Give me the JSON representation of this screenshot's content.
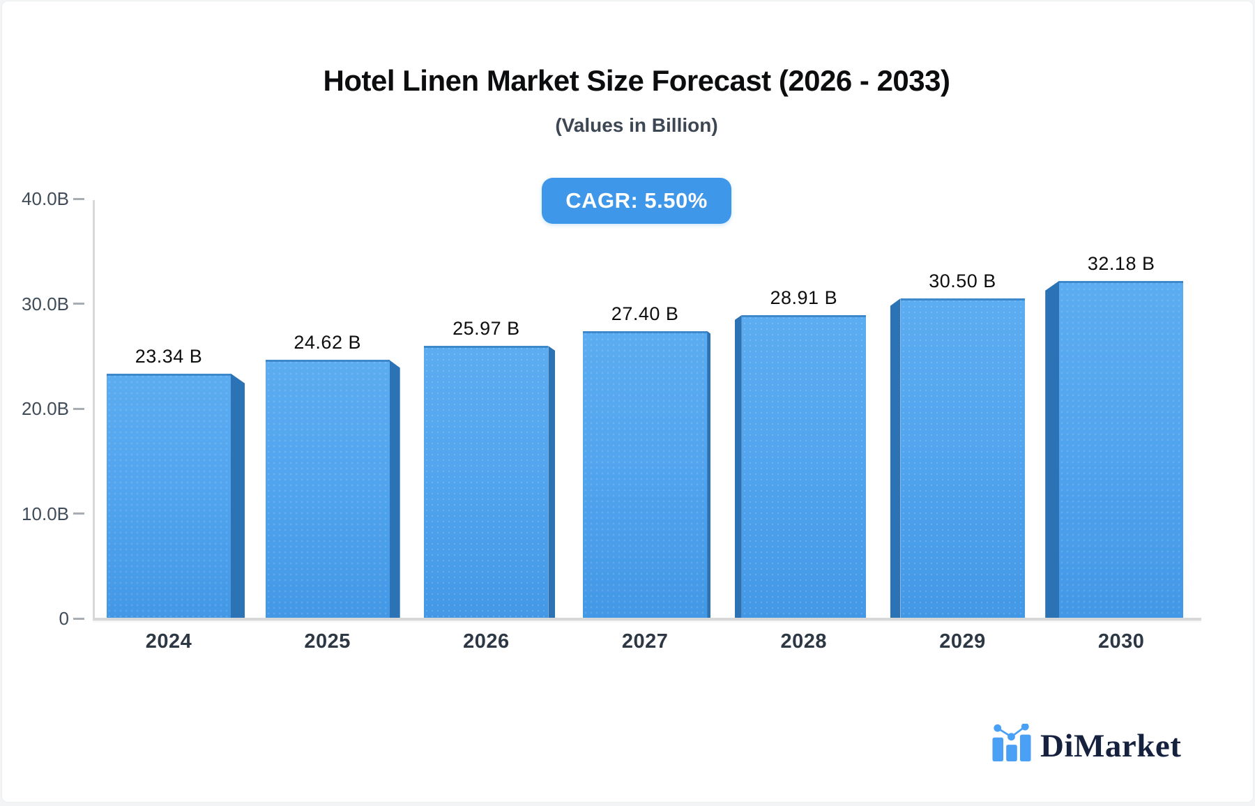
{
  "chart_data": {
    "type": "bar",
    "title": "Hotel Linen Market Size Forecast (2026 - 2033)",
    "subtitle": "(Values in Billion)",
    "cagr_label": "CAGR: 5.50%",
    "categories": [
      "2024",
      "2025",
      "2026",
      "2027",
      "2028",
      "2029",
      "2030"
    ],
    "values": [
      23.34,
      24.62,
      25.97,
      27.4,
      28.91,
      30.5,
      32.18
    ],
    "value_labels": [
      "23.34 B",
      "24.62 B",
      "25.97 B",
      "27.40 B",
      "28.91 B",
      "30.50 B",
      "32.18 B"
    ],
    "xlabel": "",
    "ylabel": "",
    "ylim": [
      0,
      40
    ],
    "yticks": [
      {
        "value": 0,
        "label": "0"
      },
      {
        "value": 10,
        "label": "10.0B"
      },
      {
        "value": 20,
        "label": "20.0B"
      },
      {
        "value": 30,
        "label": "30.0B"
      },
      {
        "value": 40,
        "label": "40.0B"
      }
    ],
    "grid": false,
    "legend": false,
    "bar_style": "3d-perspective"
  },
  "style": {
    "bar_face": "#52a5ee",
    "bar_side": "#2c73b5",
    "badge_bg": "#3f97ea",
    "axis_line": "#d6d8da",
    "tick_dash": "#a8adb3",
    "tick_label": "#414c59",
    "year_label": "#2d3844",
    "value_label": "#0d0e0f",
    "title_color": "#0c0d0e",
    "subtitle_color": "#3d4653",
    "logo_navy": "#16213e",
    "logo_blue": "#4aa0f5"
  },
  "branding": {
    "name": "DiMarket"
  }
}
